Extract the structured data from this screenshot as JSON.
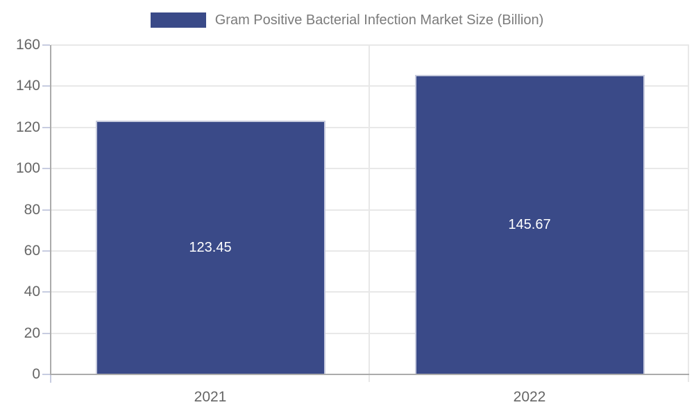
{
  "legend": {
    "label": "Gram Positive Bacterial Infection Market Size (Billion)"
  },
  "chart_data": {
    "type": "bar",
    "title": "Gram Positive Bacterial Infection Market Size (Billion)",
    "categories": [
      "2021",
      "2022"
    ],
    "values": [
      123.45,
      145.67
    ],
    "value_labels": [
      "123.45",
      "145.67"
    ],
    "xlabel": "",
    "ylabel": "",
    "ylim": [
      0,
      160
    ],
    "yticks": [
      0,
      20,
      40,
      60,
      80,
      100,
      120,
      140,
      160
    ],
    "grid": true,
    "legend_position": "top-center",
    "colors": {
      "bar_fill": "#3A4A88",
      "bar_edge": "#C7CBDD",
      "value_label": "#FFFFFF",
      "axis_text": "#666666",
      "legend_text": "#7B7B7B",
      "gridline": "#E8E8E8",
      "spine": "#ABABAB",
      "tick_mark": "#C7CCE0",
      "background": "#FFFFFF"
    }
  }
}
